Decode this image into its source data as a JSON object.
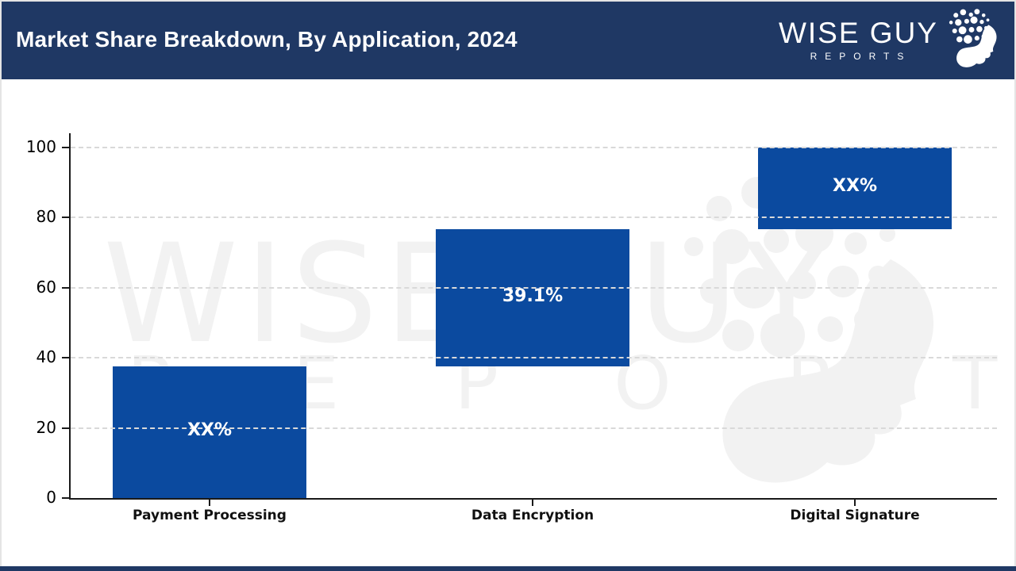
{
  "header": {
    "title": "Market Share Breakdown, By Application, 2024",
    "logo": {
      "line1": "WISE GUY",
      "line2": "REPORTS",
      "icon": "dotted-face-profile-icon"
    }
  },
  "watermark": {
    "line1": "WISE GUY",
    "line2": "R E P O R T S",
    "icon": "dotted-face-profile-watermark"
  },
  "chart_data": {
    "type": "bar",
    "subtype": "waterfall-floating-bars",
    "title": "Market Share Breakdown, By Application, 2024",
    "categories": [
      "Payment Processing",
      "Data Encryption",
      "Digital Signature"
    ],
    "series": [
      {
        "name": "Market Share %",
        "values": [
          37.5,
          39.1,
          23.4
        ],
        "bases": [
          0,
          37.5,
          76.6
        ],
        "labels": [
          "XX%",
          "39.1%",
          "XX%"
        ]
      }
    ],
    "xlabel": "",
    "ylabel": "",
    "ylim": [
      0,
      100
    ],
    "yticks": [
      0,
      20,
      40,
      60,
      80,
      100
    ],
    "grid": "horizontal dashed, drawn above bars",
    "legend": "none",
    "bar_color": "#0b4a9f",
    "bar_label_color": "#ffffff"
  },
  "colors": {
    "header_bg": "#1f3864",
    "footer_bg": "#1f3864",
    "bar": "#0b4a9f",
    "grid": "#d9d9d9",
    "axis": "#1a1a1a",
    "watermark": "#f2f2f2",
    "frame_border": "#e4e4e4",
    "title_text": "#ffffff"
  }
}
